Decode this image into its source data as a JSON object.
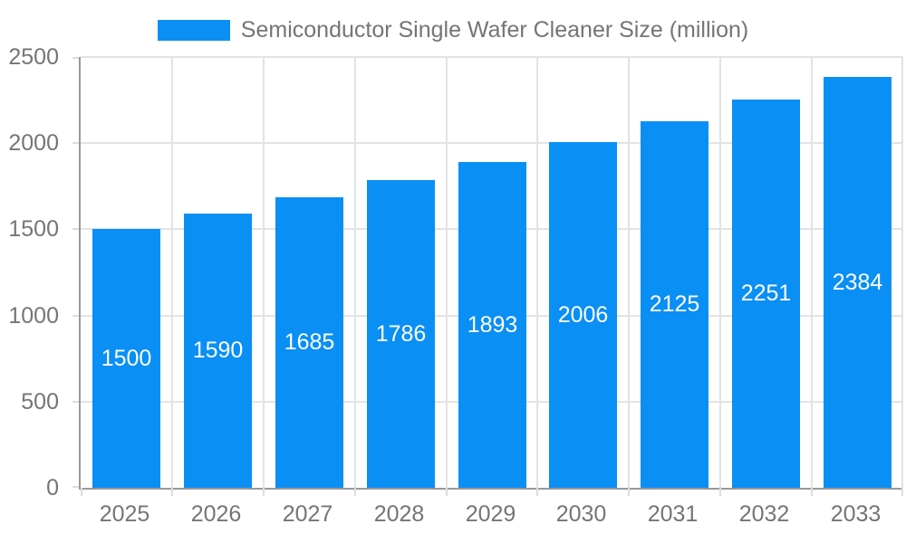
{
  "legend": {
    "label": "Semiconductor Single Wafer Cleaner Size (million)"
  },
  "chart_data": {
    "type": "bar",
    "title": "Semiconductor Single Wafer Cleaner Size (million)",
    "categories": [
      "2025",
      "2026",
      "2027",
      "2028",
      "2029",
      "2030",
      "2031",
      "2032",
      "2033"
    ],
    "values": [
      1500,
      1590,
      1685,
      1786,
      1893,
      2006,
      2125,
      2251,
      2384
    ],
    "series": [
      {
        "name": "Semiconductor Single Wafer Cleaner Size (million)",
        "values": [
          1500,
          1590,
          1685,
          1786,
          1893,
          2006,
          2125,
          2251,
          2384
        ]
      }
    ],
    "xlabel": "",
    "ylabel": "",
    "ylim": [
      0,
      2500
    ],
    "ytick_step": 500,
    "yticks": [
      0,
      500,
      1000,
      1500,
      2000,
      2500
    ],
    "grid": true,
    "legend_position": "top-center",
    "value_labels": "centered-inside-white",
    "colors": {
      "bar": "#0A8FF5",
      "value_label": "#FFFFFF",
      "axis_line": "#999999",
      "grid_line": "#E3E3E3",
      "tick_line": "#DDDDDD",
      "text": "#757575",
      "background": "#FFFFFF"
    }
  }
}
